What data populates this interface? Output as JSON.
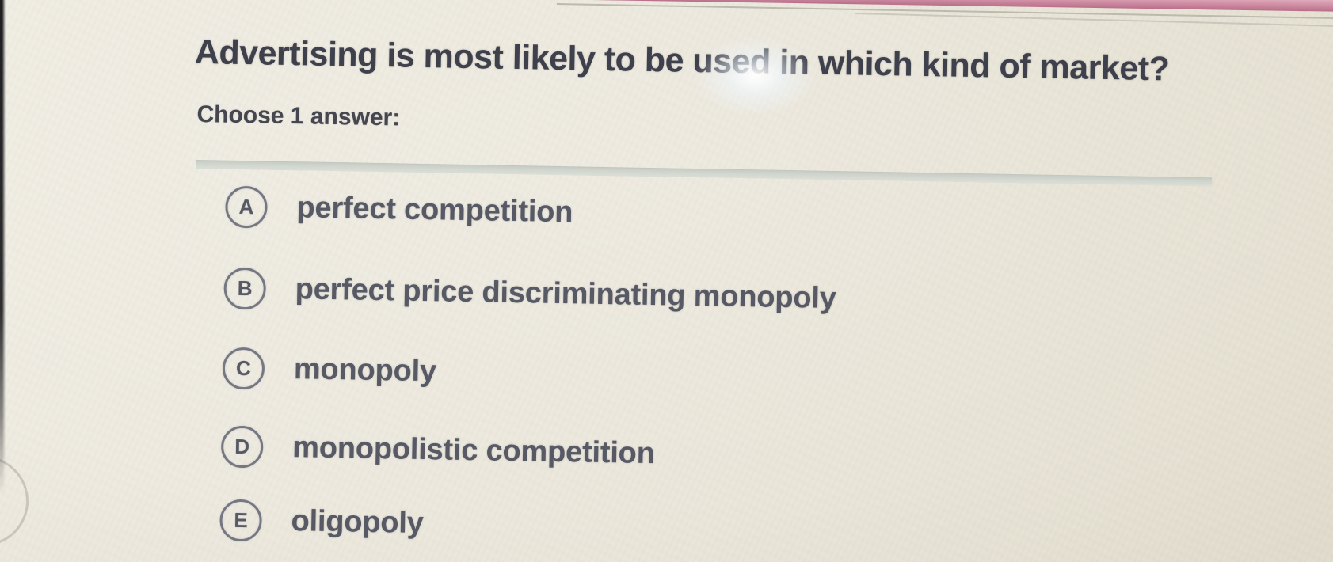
{
  "question": {
    "title": "Advertising is most likely to be used in which kind of market?",
    "prompt": "Choose 1 answer:"
  },
  "choices": [
    {
      "letter": "A",
      "label": "perfect competition"
    },
    {
      "letter": "B",
      "label": "perfect price discriminating monopoly"
    },
    {
      "letter": "C",
      "label": "monopoly"
    },
    {
      "letter": "D",
      "label": "monopolistic competition"
    },
    {
      "letter": "E",
      "label": "oligopoly"
    }
  ],
  "colors": {
    "bg": "#eae6da",
    "bg_light": "#efecE2",
    "bg_dark": "#e4dfd0",
    "title_text": "#3e404b",
    "prompt_text": "#45464f",
    "option_text": "#575965",
    "circle_stroke": "#75778312",
    "circle_stroke_solid": "#757783",
    "divider": "#d1d6ce",
    "hairline": "#bcb9ae",
    "accent_pink_light": "#dfaebd",
    "accent_pink": "#cd8aa0",
    "accent_pink_dark": "#b8708a"
  }
}
